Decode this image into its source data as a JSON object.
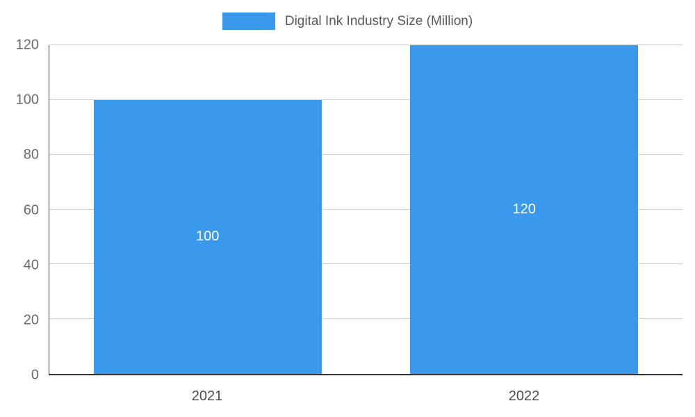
{
  "chart_data": {
    "type": "bar",
    "title": "Digital Ink Industry Size (Million)",
    "categories": [
      "2021",
      "2022"
    ],
    "values": [
      100,
      120
    ],
    "data_labels": [
      "100",
      "120"
    ],
    "xlabel": "",
    "ylabel": "",
    "ylim": [
      0,
      120
    ],
    "ytick_step": 20,
    "ytick_labels": [
      "0",
      "20",
      "40",
      "60",
      "80",
      "100",
      "120"
    ],
    "grid": true,
    "legend_position": "top-center",
    "bar_color": "#3B99EC",
    "value_label_color": "#ffffff",
    "gridline_color": "#cccccc",
    "axis_color": "#333333",
    "ytick_color": "#6b6b6b",
    "xtick_color": "#4d4d4d",
    "title_color": "#58595b"
  }
}
